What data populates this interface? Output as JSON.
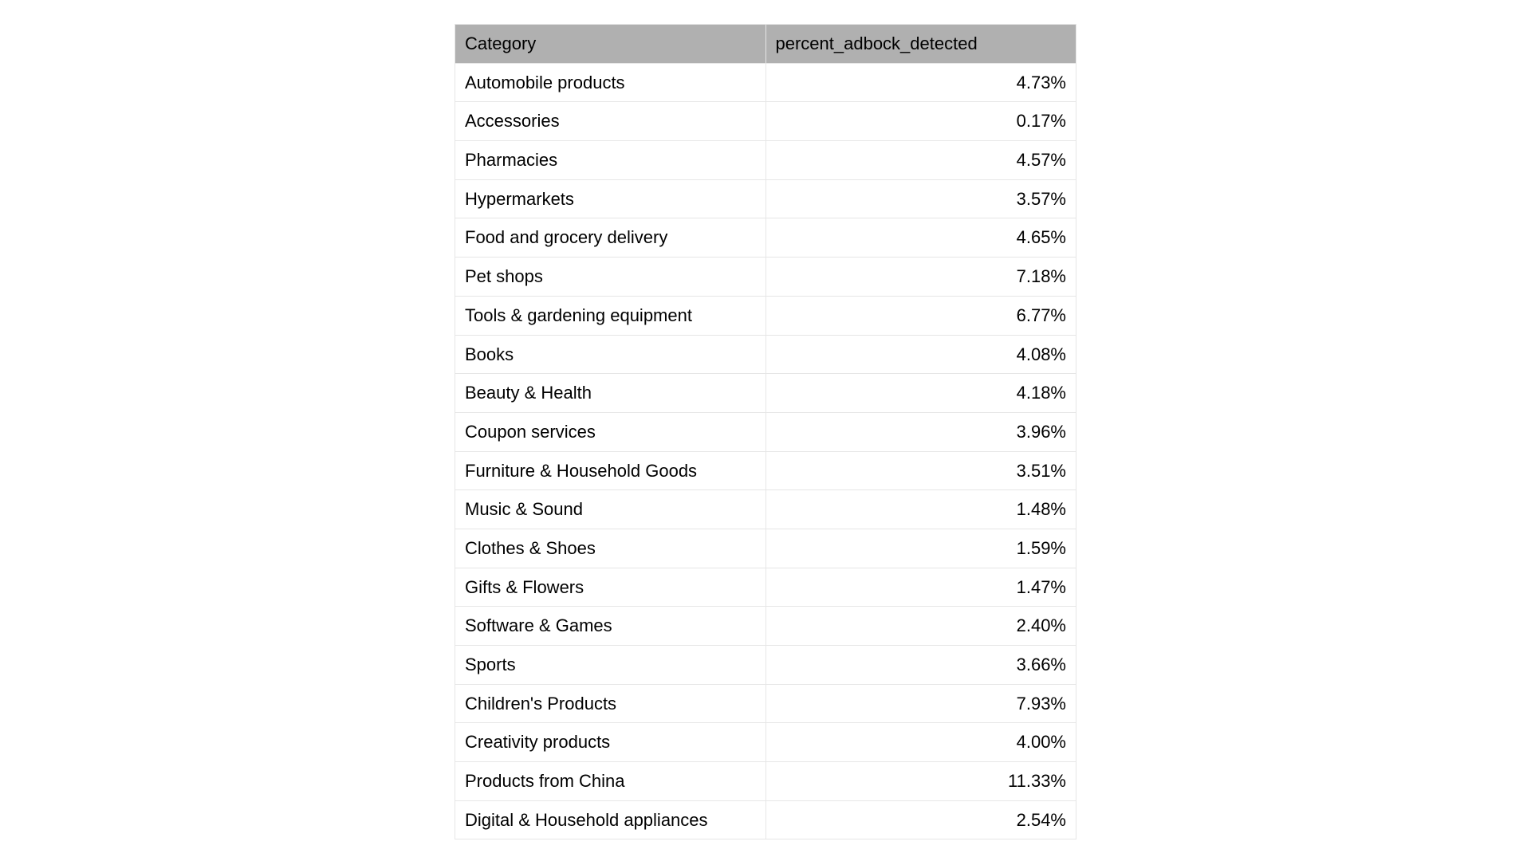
{
  "table": {
    "type": "table",
    "header_bg": "#b0b0b0",
    "header_fg": "#000000",
    "row_border_color": "#e6e6e6",
    "cell_font_size_pt": 16,
    "columns": [
      {
        "key": "category",
        "label": "Category",
        "align": "left",
        "width_pct": 50
      },
      {
        "key": "percent",
        "label": "percent_adbock_detected",
        "align": "right",
        "width_pct": 50
      }
    ],
    "rows": [
      {
        "category": "Automobile products",
        "percent": "4.73%"
      },
      {
        "category": "Accessories",
        "percent": "0.17%"
      },
      {
        "category": "Pharmacies",
        "percent": "4.57%"
      },
      {
        "category": "Hypermarkets",
        "percent": "3.57%"
      },
      {
        "category": "Food and grocery delivery",
        "percent": "4.65%"
      },
      {
        "category": "Pet shops",
        "percent": "7.18%"
      },
      {
        "category": "Tools & gardening equipment",
        "percent": "6.77%"
      },
      {
        "category": "Books",
        "percent": "4.08%"
      },
      {
        "category": "Beauty & Health",
        "percent": "4.18%"
      },
      {
        "category": "Coupon services",
        "percent": "3.96%"
      },
      {
        "category": "Furniture & Household Goods",
        "percent": "3.51%"
      },
      {
        "category": "Music & Sound",
        "percent": "1.48%"
      },
      {
        "category": "Clothes & Shoes",
        "percent": "1.59%"
      },
      {
        "category": "Gifts & Flowers",
        "percent": "1.47%"
      },
      {
        "category": "Software & Games",
        "percent": "2.40%"
      },
      {
        "category": "Sports",
        "percent": "3.66%"
      },
      {
        "category": "Children's Products",
        "percent": "7.93%"
      },
      {
        "category": "Creativity products",
        "percent": "4.00%"
      },
      {
        "category": "Products from China",
        "percent": "11.33%"
      },
      {
        "category": "Digital & Household appliances",
        "percent": "2.54%"
      }
    ]
  }
}
